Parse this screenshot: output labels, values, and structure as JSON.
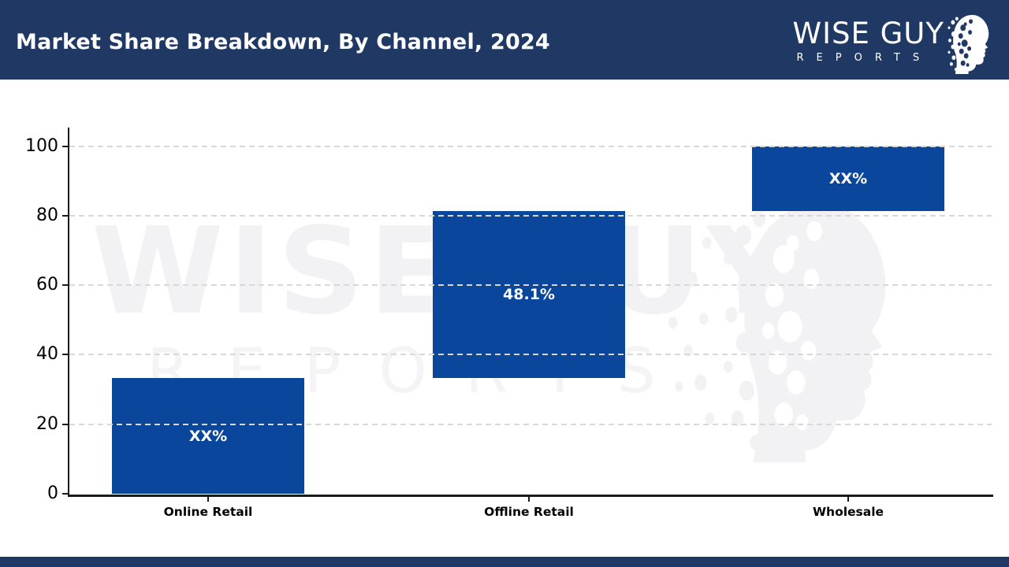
{
  "header": {
    "title": "Market Share Breakdown, By Channel, 2024",
    "logo": {
      "wordmark": "WISE GUY",
      "subtext": "REPORTS"
    }
  },
  "watermark": {
    "wordmark": "WISE GUY",
    "subtext": "REPORTS"
  },
  "theme": {
    "header_bg": "#1F3864",
    "footer_bg": "#1F3864",
    "bar_color": "#0A469B",
    "bar_label_color": "#FFFFFF",
    "grid_color": "#D8D8D8",
    "axis_color": "#1A1A1A",
    "watermark_color": "#F2F2F4"
  },
  "chart_data": {
    "type": "bar",
    "subtype": "floating-waterfall",
    "title": "Market Share Breakdown, By Channel, 2024",
    "categories": [
      "Online Retail",
      "Offline Retail",
      "Wholesale"
    ],
    "segments": [
      {
        "category": "Online Retail",
        "start": 0,
        "end": 33.2,
        "value": 33.2,
        "label": "XX%"
      },
      {
        "category": "Offline Retail",
        "start": 33.2,
        "end": 81.3,
        "value": 48.1,
        "label": "48.1%"
      },
      {
        "category": "Wholesale",
        "start": 81.3,
        "end": 100,
        "value": 18.7,
        "label": "XX%"
      }
    ],
    "yticks": [
      0,
      20,
      40,
      60,
      80,
      100
    ],
    "ylim": [
      0,
      105.5
    ],
    "xlabel": "",
    "ylabel": "",
    "grid": "horizontal-dashed",
    "legend": "none"
  }
}
